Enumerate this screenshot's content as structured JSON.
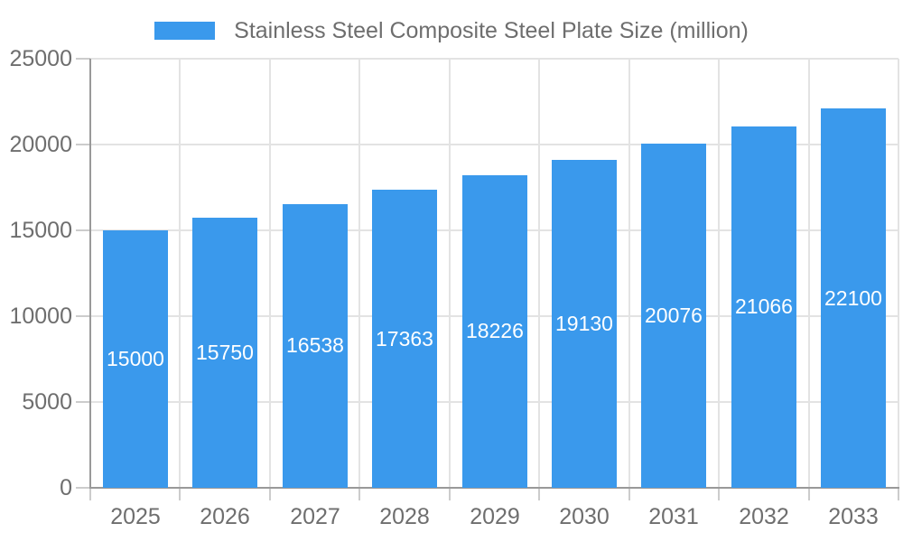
{
  "legend": {
    "label": "Stainless Steel Composite Steel Plate Size (million)"
  },
  "chart_data": {
    "type": "bar",
    "title": "",
    "categories": [
      "2025",
      "2026",
      "2027",
      "2028",
      "2029",
      "2030",
      "2031",
      "2032",
      "2033"
    ],
    "values": [
      15000,
      15750,
      16538,
      17363,
      18226,
      19130,
      20076,
      21066,
      22100
    ],
    "series_name": "Stainless Steel Composite Steel Plate Size (million)",
    "xlabel": "",
    "ylabel": "",
    "ylim": [
      0,
      25000
    ],
    "y_ticks": [
      0,
      5000,
      10000,
      15000,
      20000,
      25000
    ],
    "grid": true,
    "legend_position": "top-center",
    "value_labels_position": "inside-center",
    "colors": {
      "bar": "#3A99EC",
      "grid_line": "#E3E3E3",
      "axis_line": "#999999",
      "tick_mark": "#CCCCCC",
      "tick_text": "#6E6E6E",
      "value_label_text": "#FFFFFF",
      "background": "#FFFFFF"
    }
  }
}
